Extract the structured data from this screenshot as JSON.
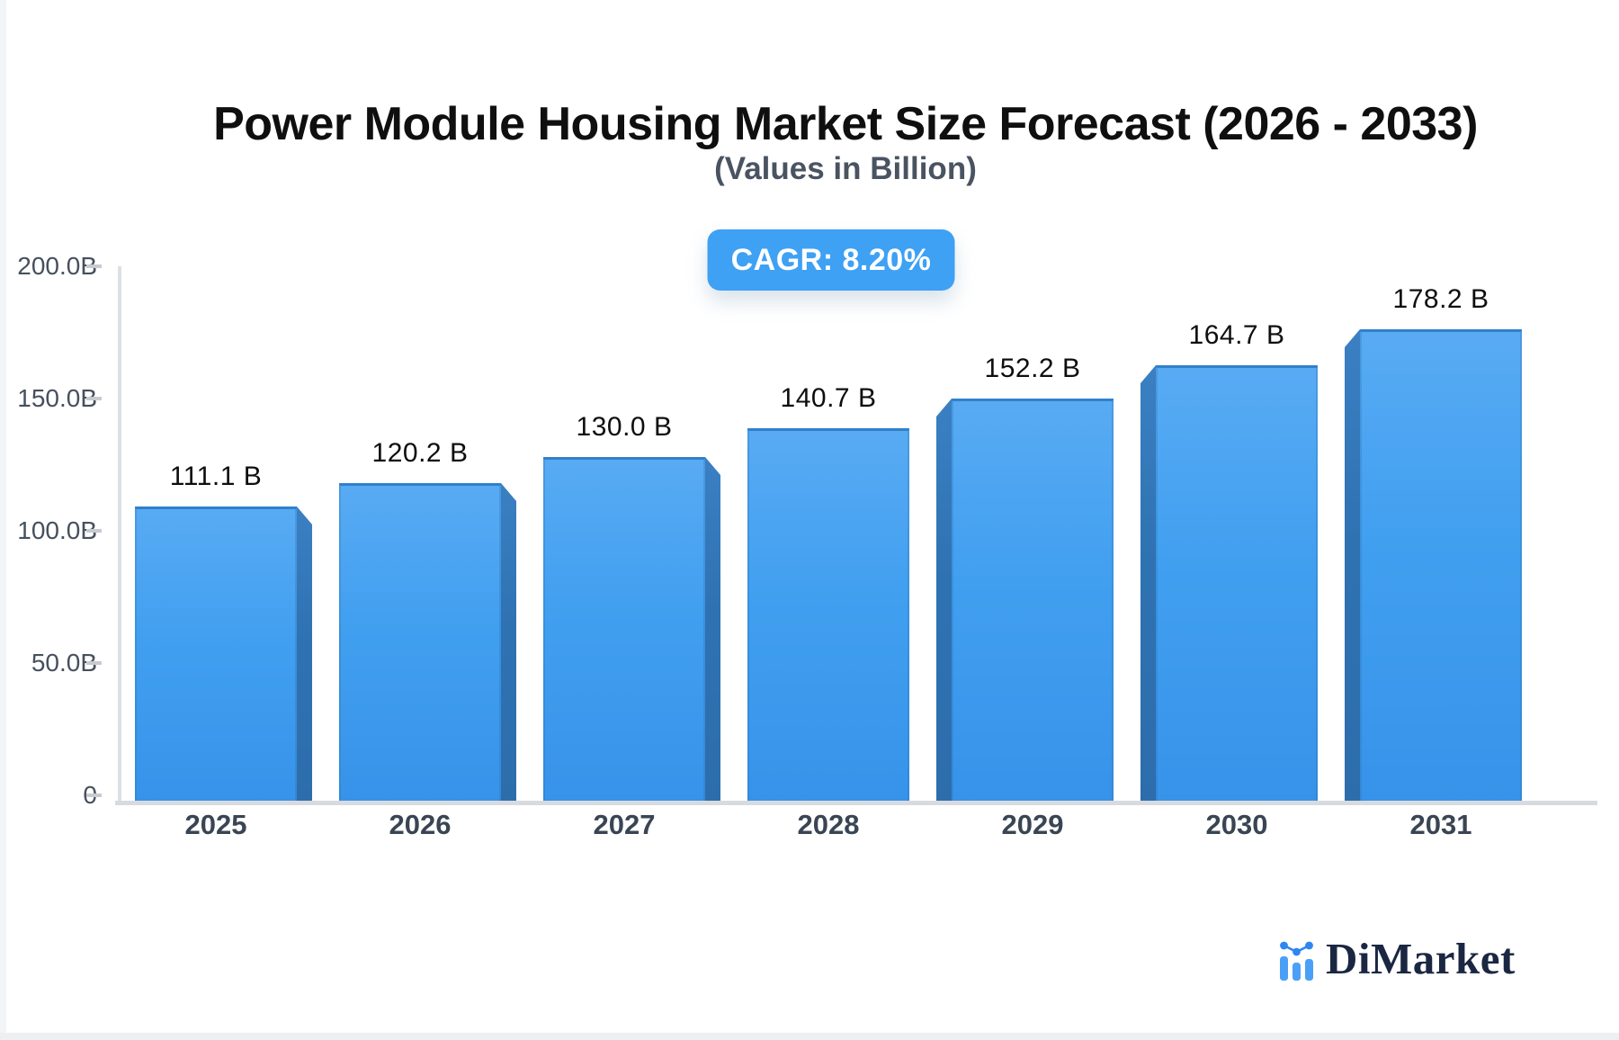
{
  "chart_data": {
    "type": "bar",
    "title": "Power Module Housing Market Size Forecast (2026 - 2033)",
    "subtitle": "(Values in Billion)",
    "categories": [
      "2025",
      "2026",
      "2027",
      "2028",
      "2029",
      "2030",
      "2031"
    ],
    "values": [
      111.1,
      120.2,
      130.0,
      140.7,
      152.2,
      164.7,
      178.2
    ],
    "bar_labels": [
      "111.1 B",
      "120.2 B",
      "130.0 B",
      "140.7 B",
      "152.2 B",
      "164.7 B",
      "178.2 B"
    ],
    "y_ticks": [
      {
        "label": "200.0B",
        "value": 200
      },
      {
        "label": "150.0B",
        "value": 150
      },
      {
        "label": "100.0B",
        "value": 100
      },
      {
        "label": "50.0B",
        "value": 50
      },
      {
        "label": "0",
        "value": 0
      }
    ],
    "ylim": [
      0,
      200
    ],
    "grid": false,
    "legend": false,
    "bar_face_color": "#3f9df0",
    "bar_side_color": "#2f72b2"
  },
  "badge": {
    "label": "CAGR: 8.20%",
    "color": "#3ea1f4"
  },
  "logo": {
    "text": "DiMarket",
    "icon": "bar-chart-icon",
    "icon_color": "#3d97f4",
    "text_color": "#1b2742"
  }
}
